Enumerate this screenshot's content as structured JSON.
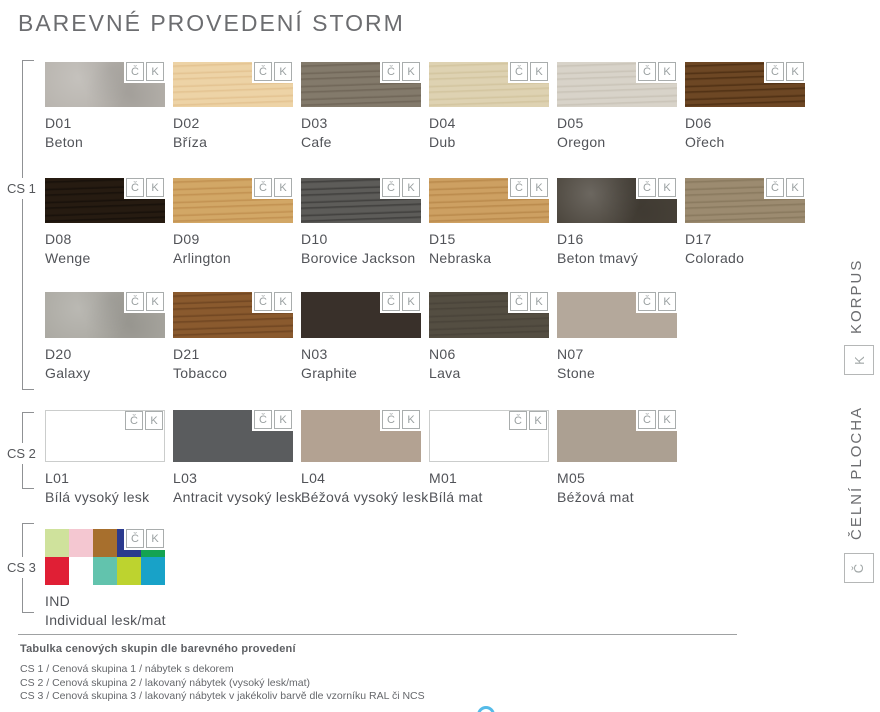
{
  "page": {
    "title": "BAREVNÉ PROVEDENÍ STORM"
  },
  "badges": {
    "front": "Č",
    "korpus": "K"
  },
  "legend": {
    "korpus_label": "KORPUS",
    "korpus_badge": "K",
    "celni_label": "ČELNÍ PLOCHA",
    "celni_badge": "Č"
  },
  "groups": [
    {
      "id": "CS 1",
      "rows": [
        [
          {
            "code": "D01",
            "name": "Beton",
            "texture": "concrete",
            "color": "#b6b2ac"
          },
          {
            "code": "D02",
            "name": "Bříza",
            "texture": "wood",
            "color": "#edd3a6",
            "color2": "#e3c290"
          },
          {
            "code": "D03",
            "name": "Cafe",
            "texture": "wood",
            "color": "#837a6b",
            "color2": "#6f6557"
          },
          {
            "code": "D04",
            "name": "Dub",
            "texture": "wood",
            "color": "#ded2b2",
            "color2": "#d2c49e"
          },
          {
            "code": "D05",
            "name": "Oregon",
            "texture": "wood",
            "color": "#d8d3c9",
            "color2": "#c9c3b7"
          },
          {
            "code": "D06",
            "name": "Ořech",
            "texture": "wood",
            "color": "#6d4724",
            "color2": "#4e2f13"
          }
        ],
        [
          {
            "code": "D08",
            "name": "Wenge",
            "texture": "wood",
            "color": "#261b11",
            "color2": "#17100a"
          },
          {
            "code": "D09",
            "name": "Arlington",
            "texture": "wood",
            "color": "#d2a766",
            "color2": "#c19050"
          },
          {
            "code": "D10",
            "name": "Borovice Jackson",
            "texture": "wood",
            "color": "#5d5c59",
            "color2": "#3f3e3c"
          },
          {
            "code": "D15",
            "name": "Nebraska",
            "texture": "wood",
            "color": "#cda062",
            "color2": "#b9894b"
          },
          {
            "code": "D16",
            "name": "Beton tmavý",
            "texture": "concrete",
            "color": "#474138"
          },
          {
            "code": "D17",
            "name": "Colorado",
            "texture": "wood",
            "color": "#9c8b70",
            "color2": "#88785d"
          }
        ],
        [
          {
            "code": "D20",
            "name": "Galaxy",
            "texture": "concrete",
            "color": "#a9a7a0"
          },
          {
            "code": "D21",
            "name": "Tobacco",
            "texture": "wood",
            "color": "#8a5a2e",
            "color2": "#6f4521"
          },
          {
            "code": "N03",
            "name": "Graphite",
            "texture": "flat",
            "color": "#39302a"
          },
          {
            "code": "N06",
            "name": "Lava",
            "texture": "wood",
            "color": "#544e42",
            "color2": "#494339"
          },
          {
            "code": "N07",
            "name": "Stone",
            "texture": "flat",
            "color": "#b4a89b"
          }
        ]
      ]
    },
    {
      "id": "CS 2",
      "rows": [
        [
          {
            "code": "L01",
            "name": "Bílá vysoký lesk",
            "texture": "white",
            "color": "#ffffff"
          },
          {
            "code": "L03",
            "name": "Antracit vysoký lesk",
            "texture": "flat",
            "color": "#5a5c5e"
          },
          {
            "code": "L04",
            "name": "Béžová vysoký lesk",
            "texture": "flat",
            "color": "#b3a292"
          },
          {
            "code": "M01",
            "name": "Bílá mat",
            "texture": "white",
            "color": "#ffffff"
          },
          {
            "code": "M05",
            "name": "Béžová mat",
            "texture": "flat",
            "color": "#aca092"
          }
        ]
      ]
    },
    {
      "id": "CS 3",
      "rows": [
        [
          {
            "code": "IND",
            "name": "Individual lesk/mat",
            "texture": "palette",
            "colors": [
              "#cfe29c",
              "#f4c7d1",
              "#a76f2d",
              "#2b3a8e",
              "#14a351",
              "#e01f35",
              "#ffffff",
              "#62c3ad",
              "#bdd32f",
              "#18a2c8"
            ]
          }
        ]
      ]
    }
  ],
  "footer": {
    "heading": "Tabulka cenových skupin dle barevného provedení",
    "lines": [
      "CS 1 / Cenová skupina 1 / nábytek s dekorem",
      "CS 2 / Cenová skupina 2 / lakovaný nábytek (vysoký lesk/mat)",
      "CS 3 / Cenová skupina 3 / lakovaný nábytek v jakékoliv barvě dle vzorníku RAL či NCS"
    ]
  },
  "decorations": {
    "partial_logo_color": "#55bbe8"
  }
}
